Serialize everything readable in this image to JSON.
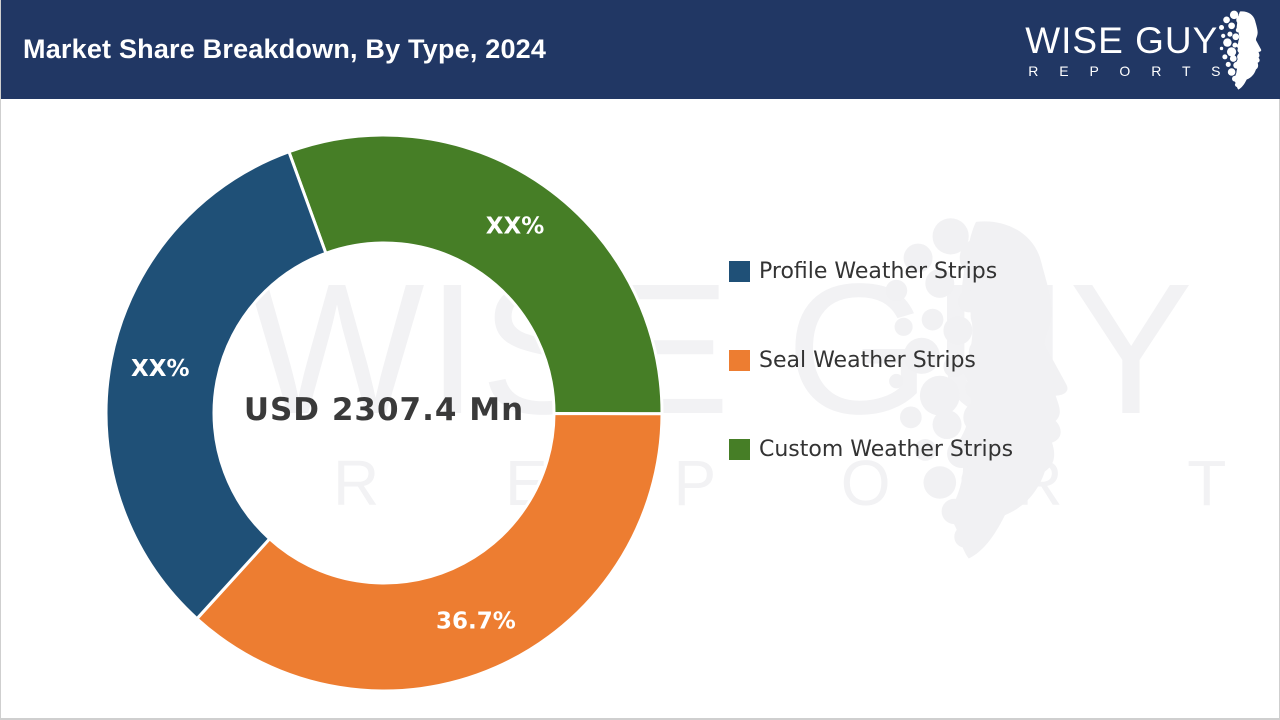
{
  "header": {
    "title": "Market Share Breakdown, By Type, 2024",
    "bg_color": "#213764",
    "logo": {
      "line1": "WISE GUY",
      "line2": "R E P O R T S"
    }
  },
  "watermark": {
    "line1": "WISE GUY",
    "line2": "R E P O R T S"
  },
  "legend": [
    {
      "label": "Profile Weather Strips",
      "color": "#1F5077"
    },
    {
      "label": "Seal Weather Strips",
      "color": "#ED7D31"
    },
    {
      "label": "Custom Weather Strips",
      "color": "#467E26"
    }
  ],
  "chart_data": {
    "type": "pie",
    "subtype": "donut",
    "title": "Market Share Breakdown, By Type, 2024",
    "center_total": "USD 2307.4 Mn",
    "start_angle_deg": 110,
    "clockwise": true,
    "inner_radius_ratio": 0.61,
    "legend_position": "right",
    "slices": [
      {
        "name": "Custom Weather Strips",
        "color": "#467E26",
        "value": 30.6,
        "label": "XX%",
        "value_shown": false
      },
      {
        "name": "Seal Weather Strips",
        "color": "#ED7D31",
        "value": 36.7,
        "label": "36.7%",
        "value_shown": true
      },
      {
        "name": "Profile Weather Strips",
        "color": "#1F5077",
        "value": 32.7,
        "label": "XX%",
        "value_shown": false
      }
    ]
  }
}
